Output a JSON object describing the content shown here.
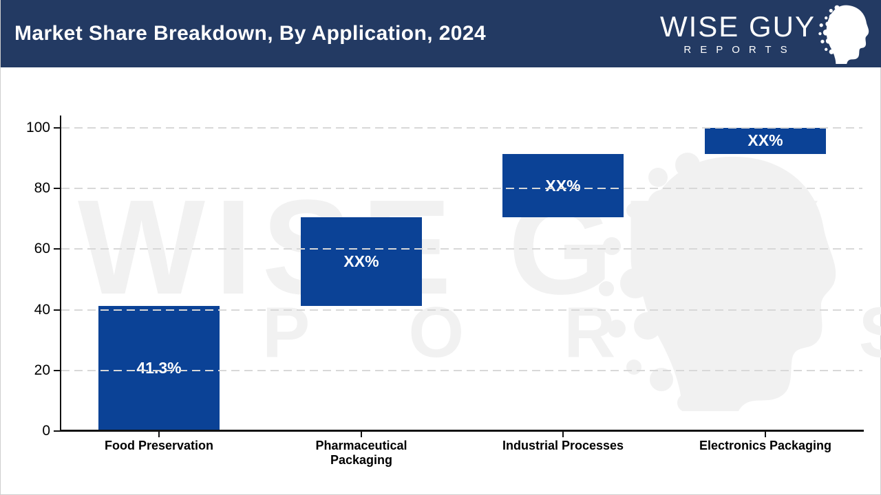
{
  "header": {
    "title": "Market Share Breakdown, By Application, 2024",
    "logo": {
      "name": "WISE GUY",
      "sub": "REPORTS"
    }
  },
  "watermark": {
    "line1": "WISE GUY",
    "line2": "P O R T S"
  },
  "colors": {
    "header_bg": "#233a63",
    "bar_blue": "#0b4296",
    "grid_gray": "#d8d8d8",
    "watermark_gray": "#f1f1f1"
  },
  "chart_data": {
    "type": "bar",
    "subtype": "floating-waterfall",
    "title": "Market Share Breakdown, By Application, 2024",
    "xlabel": "",
    "ylabel": "",
    "ylim": [
      0,
      105
    ],
    "yticks": [
      0,
      20,
      40,
      60,
      80,
      100
    ],
    "grid": "horizontal dashed, drawn over bars",
    "legend": "none",
    "bar_color": "#0b4296",
    "categories": [
      "Food Preservation",
      "Pharmaceutical Packaging",
      "Industrial Processes",
      "Electronics Packaging"
    ],
    "bars": [
      {
        "category": "Food Preservation",
        "start": 0,
        "end": 41.3,
        "label": "41.3%"
      },
      {
        "category": "Pharmaceutical Packaging",
        "start": 41.3,
        "end": 70.5,
        "label": "XX%"
      },
      {
        "category": "Industrial Processes",
        "start": 70.5,
        "end": 91.4,
        "label": "XX%"
      },
      {
        "category": "Electronics Packaging",
        "start": 91.4,
        "end": 100,
        "label": "XX%"
      }
    ]
  }
}
